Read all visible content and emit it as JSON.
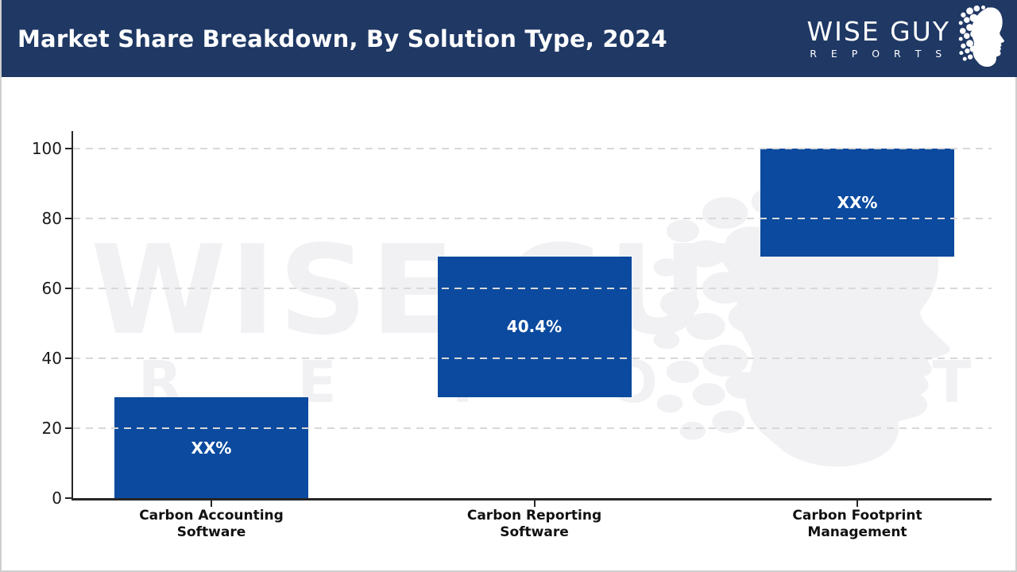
{
  "header": {
    "title": "Market Share Breakdown, By Solution Type, 2024",
    "logo": {
      "name": "WISE GUY",
      "subtitle": "R E P O R T S"
    }
  },
  "watermark": {
    "line1": "WISE GUY",
    "line2": "R E P O R T S"
  },
  "chart_data": {
    "type": "bar",
    "subtype": "waterfall",
    "title": "Market Share Breakdown, By Solution Type, 2024",
    "categories": [
      [
        "Carbon Accounting",
        "Software"
      ],
      [
        "Carbon Reporting",
        "Software"
      ],
      [
        "Carbon Footprint",
        "Management"
      ]
    ],
    "bars": [
      {
        "label": "XX%",
        "start": 0,
        "end": 28.8,
        "value_shown": "XX%",
        "masked": true
      },
      {
        "label": "40.4%",
        "start": 28.8,
        "end": 69.2,
        "value_shown": "40.4%",
        "masked": false
      },
      {
        "label": "XX%",
        "start": 69.2,
        "end": 100,
        "value_shown": "XX%",
        "masked": true
      }
    ],
    "yticks": [
      0,
      20,
      40,
      60,
      80,
      100
    ],
    "ylim": [
      0,
      105
    ],
    "xlabel": "",
    "ylabel": "",
    "legend": "none",
    "grid": "horizontal-dashed",
    "bar_color": "#0b4a9e",
    "bar_label_color": "#ffffff"
  },
  "colors": {
    "header_bg": "#1f3864",
    "bar": "#0b4a9e",
    "grid": "#d8d8d8",
    "axis": "#262626",
    "watermark": "#f1f1f4",
    "page_border": "#cfcfcf"
  }
}
